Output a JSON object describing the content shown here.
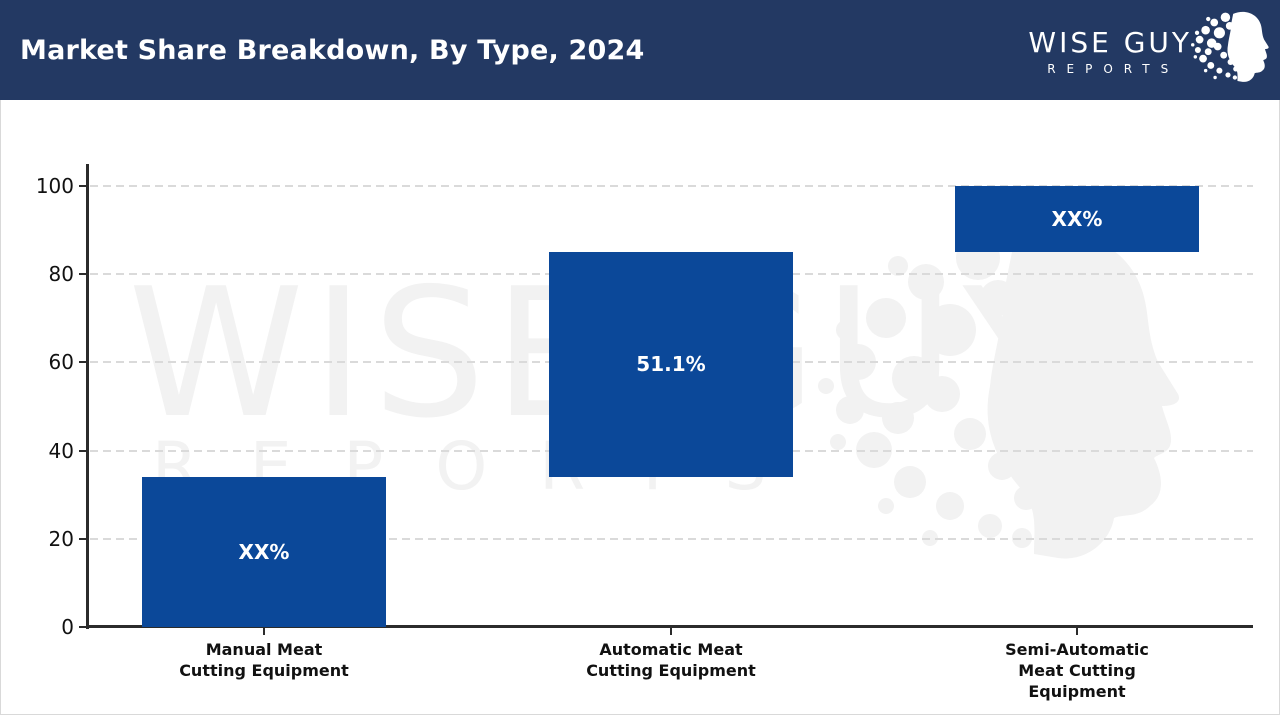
{
  "header": {
    "title": "Market Share Breakdown, By Type, 2024"
  },
  "logo": {
    "wordmark": "WISE GUY",
    "subtext": "REPORTS"
  },
  "watermark": {
    "wordmark": "WISE GUY",
    "subtext": "REPORTS"
  },
  "chart_data": {
    "type": "bar",
    "subtype": "stacked-waterfall",
    "title": "Market Share Breakdown, By Type, 2024",
    "categories": [
      [
        "Manual Meat",
        "Cutting Equipment"
      ],
      [
        "Automatic Meat",
        "Cutting Equipment"
      ],
      [
        "Semi-Automatic",
        "Meat Cutting",
        "Equipment"
      ]
    ],
    "bars": [
      {
        "category": "Manual Meat Cutting Equipment",
        "start": 0,
        "end": 34,
        "label": "XX%"
      },
      {
        "category": "Automatic Meat Cutting Equipment",
        "start": 34,
        "end": 85.1,
        "label": "51.1%"
      },
      {
        "category": "Semi-Automatic Meat Cutting Equipment",
        "start": 85.1,
        "end": 100,
        "label": "XX%"
      }
    ],
    "yticks": [
      0,
      20,
      40,
      60,
      80,
      100
    ],
    "ylim": [
      0,
      105
    ],
    "grid": "horizontal-dashed",
    "legend": "none",
    "bar_color": "#0b4899",
    "bar_label_color": "#ffffff",
    "axis_color": "#2b2b2b",
    "grid_color": "#dadada",
    "header_color": "#233963"
  }
}
